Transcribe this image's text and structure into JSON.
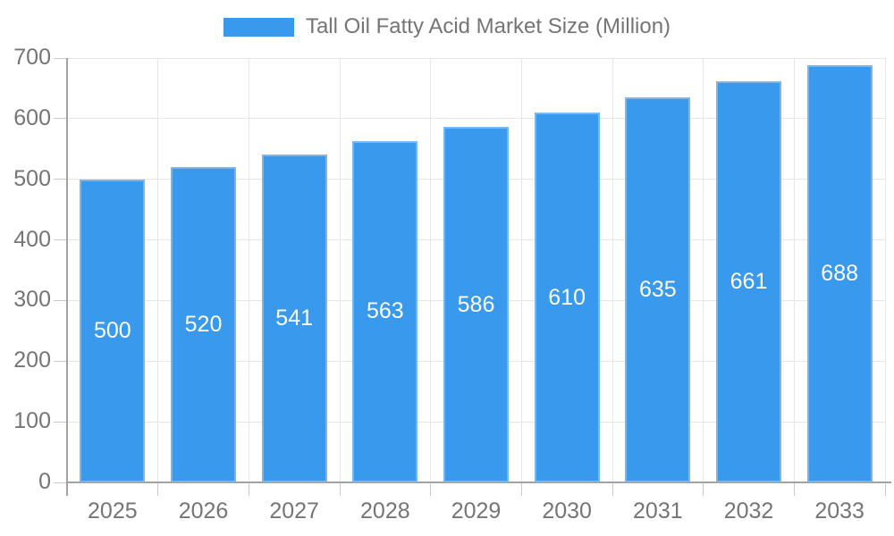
{
  "chart_data": {
    "type": "bar",
    "title": "Tall Oil Fatty Acid Market Size (Million)",
    "categories": [
      "2025",
      "2026",
      "2027",
      "2028",
      "2029",
      "2030",
      "2031",
      "2032",
      "2033"
    ],
    "series": [
      {
        "name": "Tall Oil Fatty Acid Market Size (Million)",
        "values": [
          500,
          520,
          541,
          563,
          586,
          610,
          635,
          661,
          688
        ],
        "color": "#3999ec"
      }
    ],
    "xlabel": "",
    "ylabel": "",
    "ylim": [
      0,
      700
    ],
    "yticks": [
      0,
      100,
      200,
      300,
      400,
      500,
      600,
      700
    ],
    "grid": true,
    "legend_position": "top-center",
    "value_labels": "inside-middle"
  },
  "legend": {
    "swatch_icon": "bar-swatch"
  },
  "colors": {
    "bar": "#3999ec",
    "value_text": "#ffffff",
    "axis_text": "#757575",
    "axis_line": "#a2a2a2",
    "grid_line": "#e6e6e6",
    "tick_line": "#c9c9c9",
    "background": "#ffffff"
  }
}
